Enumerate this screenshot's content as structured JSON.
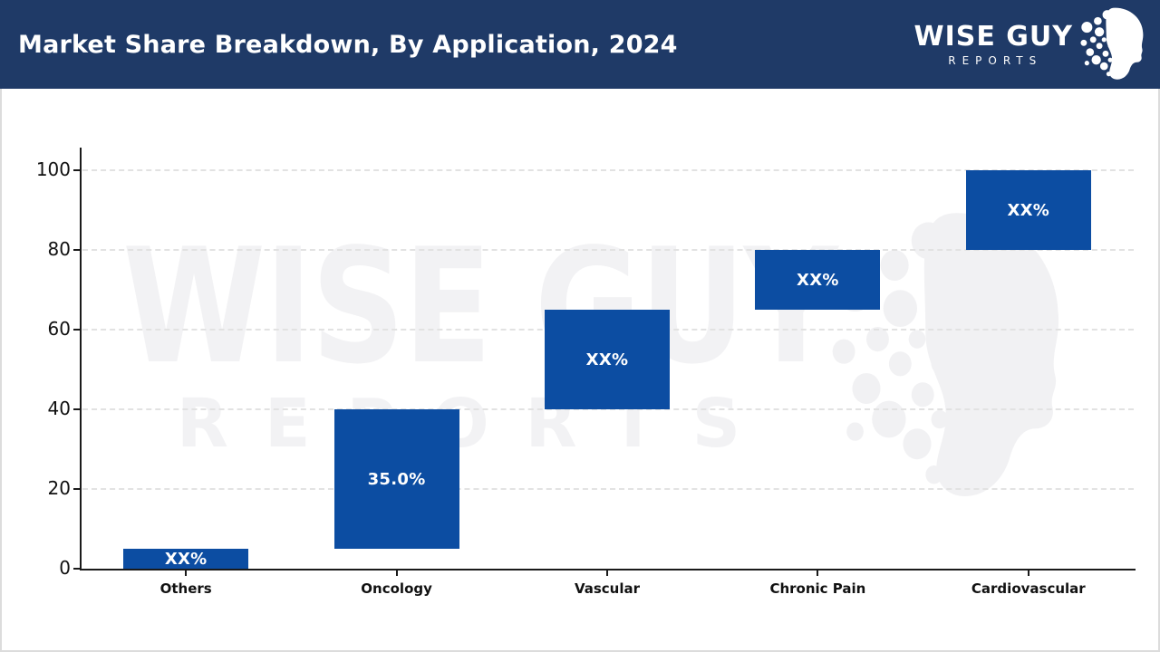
{
  "header": {
    "title": "Market Share Breakdown, By Application, 2024",
    "logo": {
      "name": "WISE GUY",
      "tagline": "REPORTS",
      "head_icon": "dotted-head-profile-icon"
    }
  },
  "watermark": {
    "line1": "WISE GUY",
    "line2": "REPORTS",
    "head_icon": "dotted-head-profile-icon"
  },
  "chart_data": {
    "type": "bar",
    "subtype": "floating-waterfall",
    "title": "Market Share Breakdown, By Application, 2024",
    "xlabel": "",
    "ylabel": "",
    "categories": [
      "Others",
      "Oncology",
      "Vascular",
      "Chronic Pain",
      "Cardiovascular"
    ],
    "segments": [
      {
        "category": "Others",
        "start": 0,
        "end": 5,
        "value_label": "XX%"
      },
      {
        "category": "Oncology",
        "start": 5,
        "end": 40,
        "value_label": "35.0%"
      },
      {
        "category": "Vascular",
        "start": 40,
        "end": 65,
        "value_label": "XX%"
      },
      {
        "category": "Chronic Pain",
        "start": 65,
        "end": 80,
        "value_label": "XX%"
      },
      {
        "category": "Cardiovascular",
        "start": 80,
        "end": 100,
        "value_label": "XX%"
      }
    ],
    "yticks": [
      0,
      20,
      40,
      60,
      80,
      100
    ],
    "ylim": [
      0,
      105
    ],
    "grid": "horizontal-dashed",
    "legend": "none"
  },
  "colors": {
    "header_bg": "#1F3A67",
    "bar": "#0C4DA2",
    "bar_label": "#FFFFFF",
    "grid": "#E2E2E2",
    "axis": "#1A1A1A",
    "frame": "#DCDCDC",
    "watermark": "#F2F2F4"
  }
}
